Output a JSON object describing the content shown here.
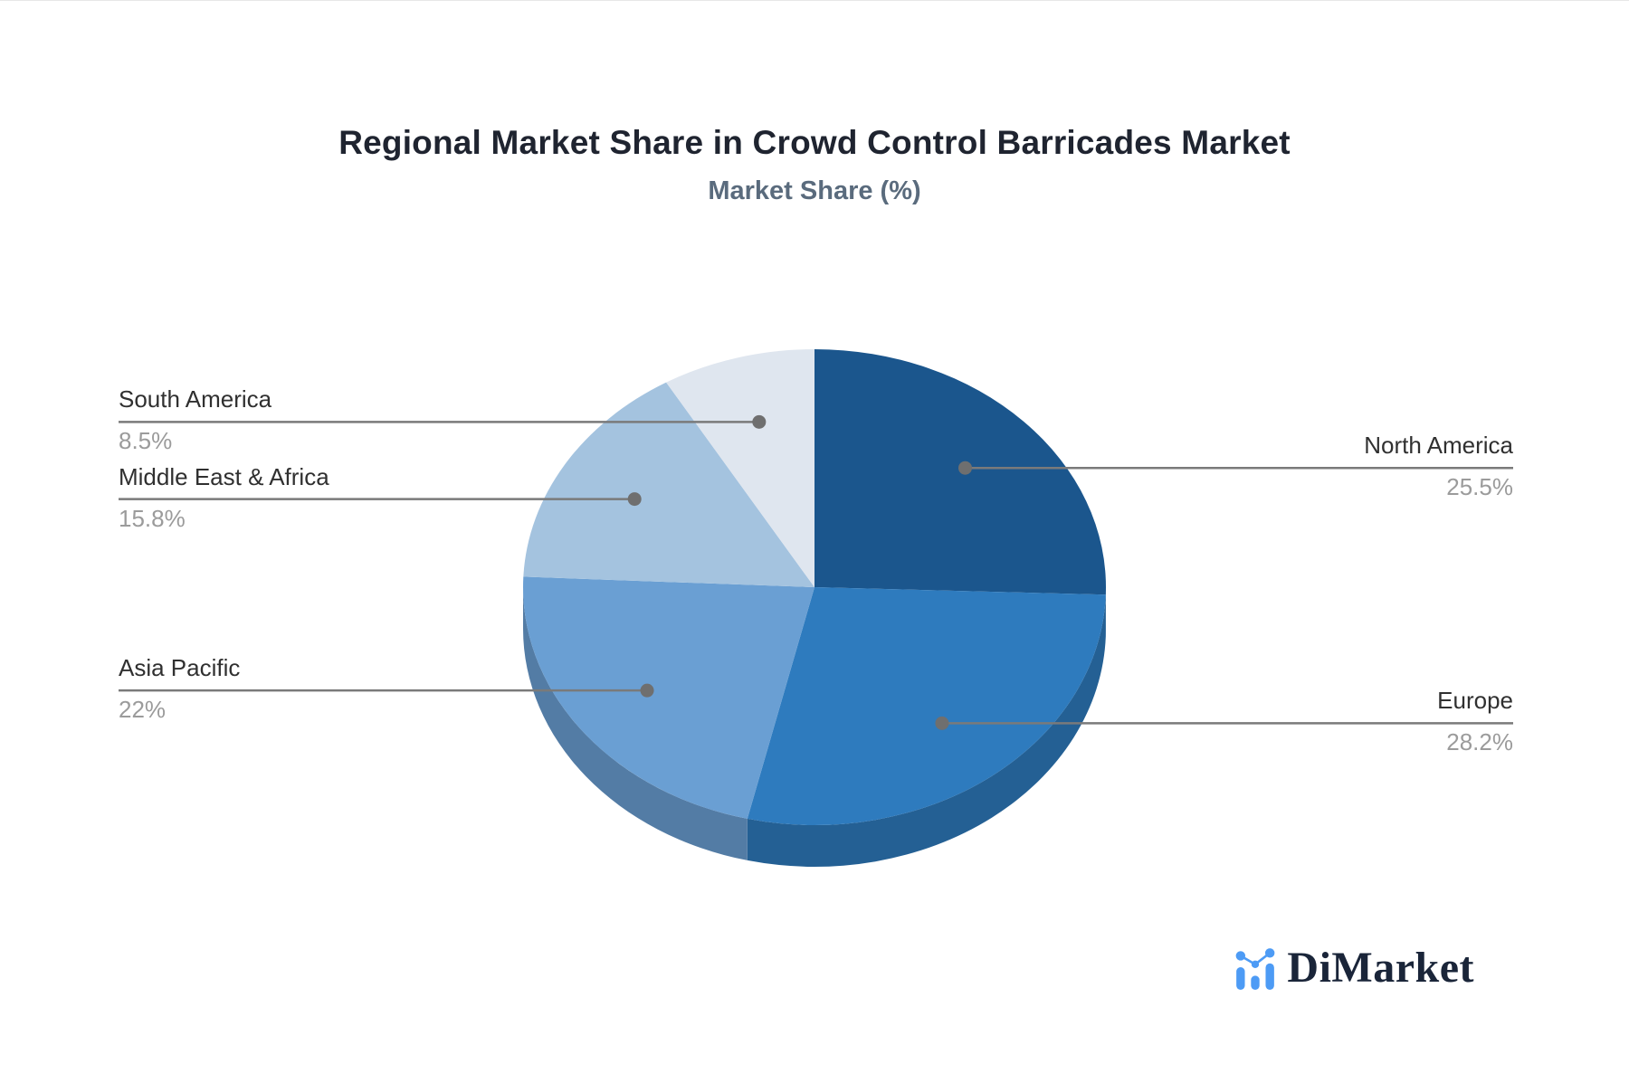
{
  "page": {
    "title": "Regional Market Share in Crowd Control Barricades Market",
    "subtitle": "Market Share (%)"
  },
  "chart_data": {
    "type": "pie",
    "title": "Regional Market Share in Crowd Control Barricades Market",
    "subtitle": "Market Share (%)",
    "unit": "%",
    "effect": "3d-depth",
    "start_angle": "top",
    "direction": "clockwise",
    "legend_position": "none",
    "slices": [
      {
        "label": "North America",
        "value": 25.5,
        "display": "25.5%",
        "color": "#1B568D",
        "label_side": "right"
      },
      {
        "label": "Europe",
        "value": 28.2,
        "display": "28.2%",
        "color": "#2E7BBE",
        "label_side": "right"
      },
      {
        "label": "Asia Pacific",
        "value": 22,
        "display": "22%",
        "color": "#6A9FD3",
        "label_side": "left"
      },
      {
        "label": "Middle East & Africa",
        "value": 15.8,
        "display": "15.8%",
        "color": "#A4C3DF",
        "label_side": "left"
      },
      {
        "label": "South America",
        "value": 8.5,
        "display": "8.5%",
        "color": "#DFE6EF",
        "label_side": "left"
      }
    ]
  },
  "branding": {
    "logo_text": "DiMarket",
    "logo_icon": "bar-line-chart-icon",
    "logo_icon_color": "#4D9BF5",
    "logo_text_color": "#1A2539"
  },
  "colors": {
    "background": "#FFFFFF",
    "title_text": "#1F2430",
    "subtitle_text": "#5A6B7D",
    "label_text": "#303030",
    "value_text": "#9B9B9B",
    "leader_line": "#7A7A7A",
    "leader_dot": "#6F6F6F"
  }
}
